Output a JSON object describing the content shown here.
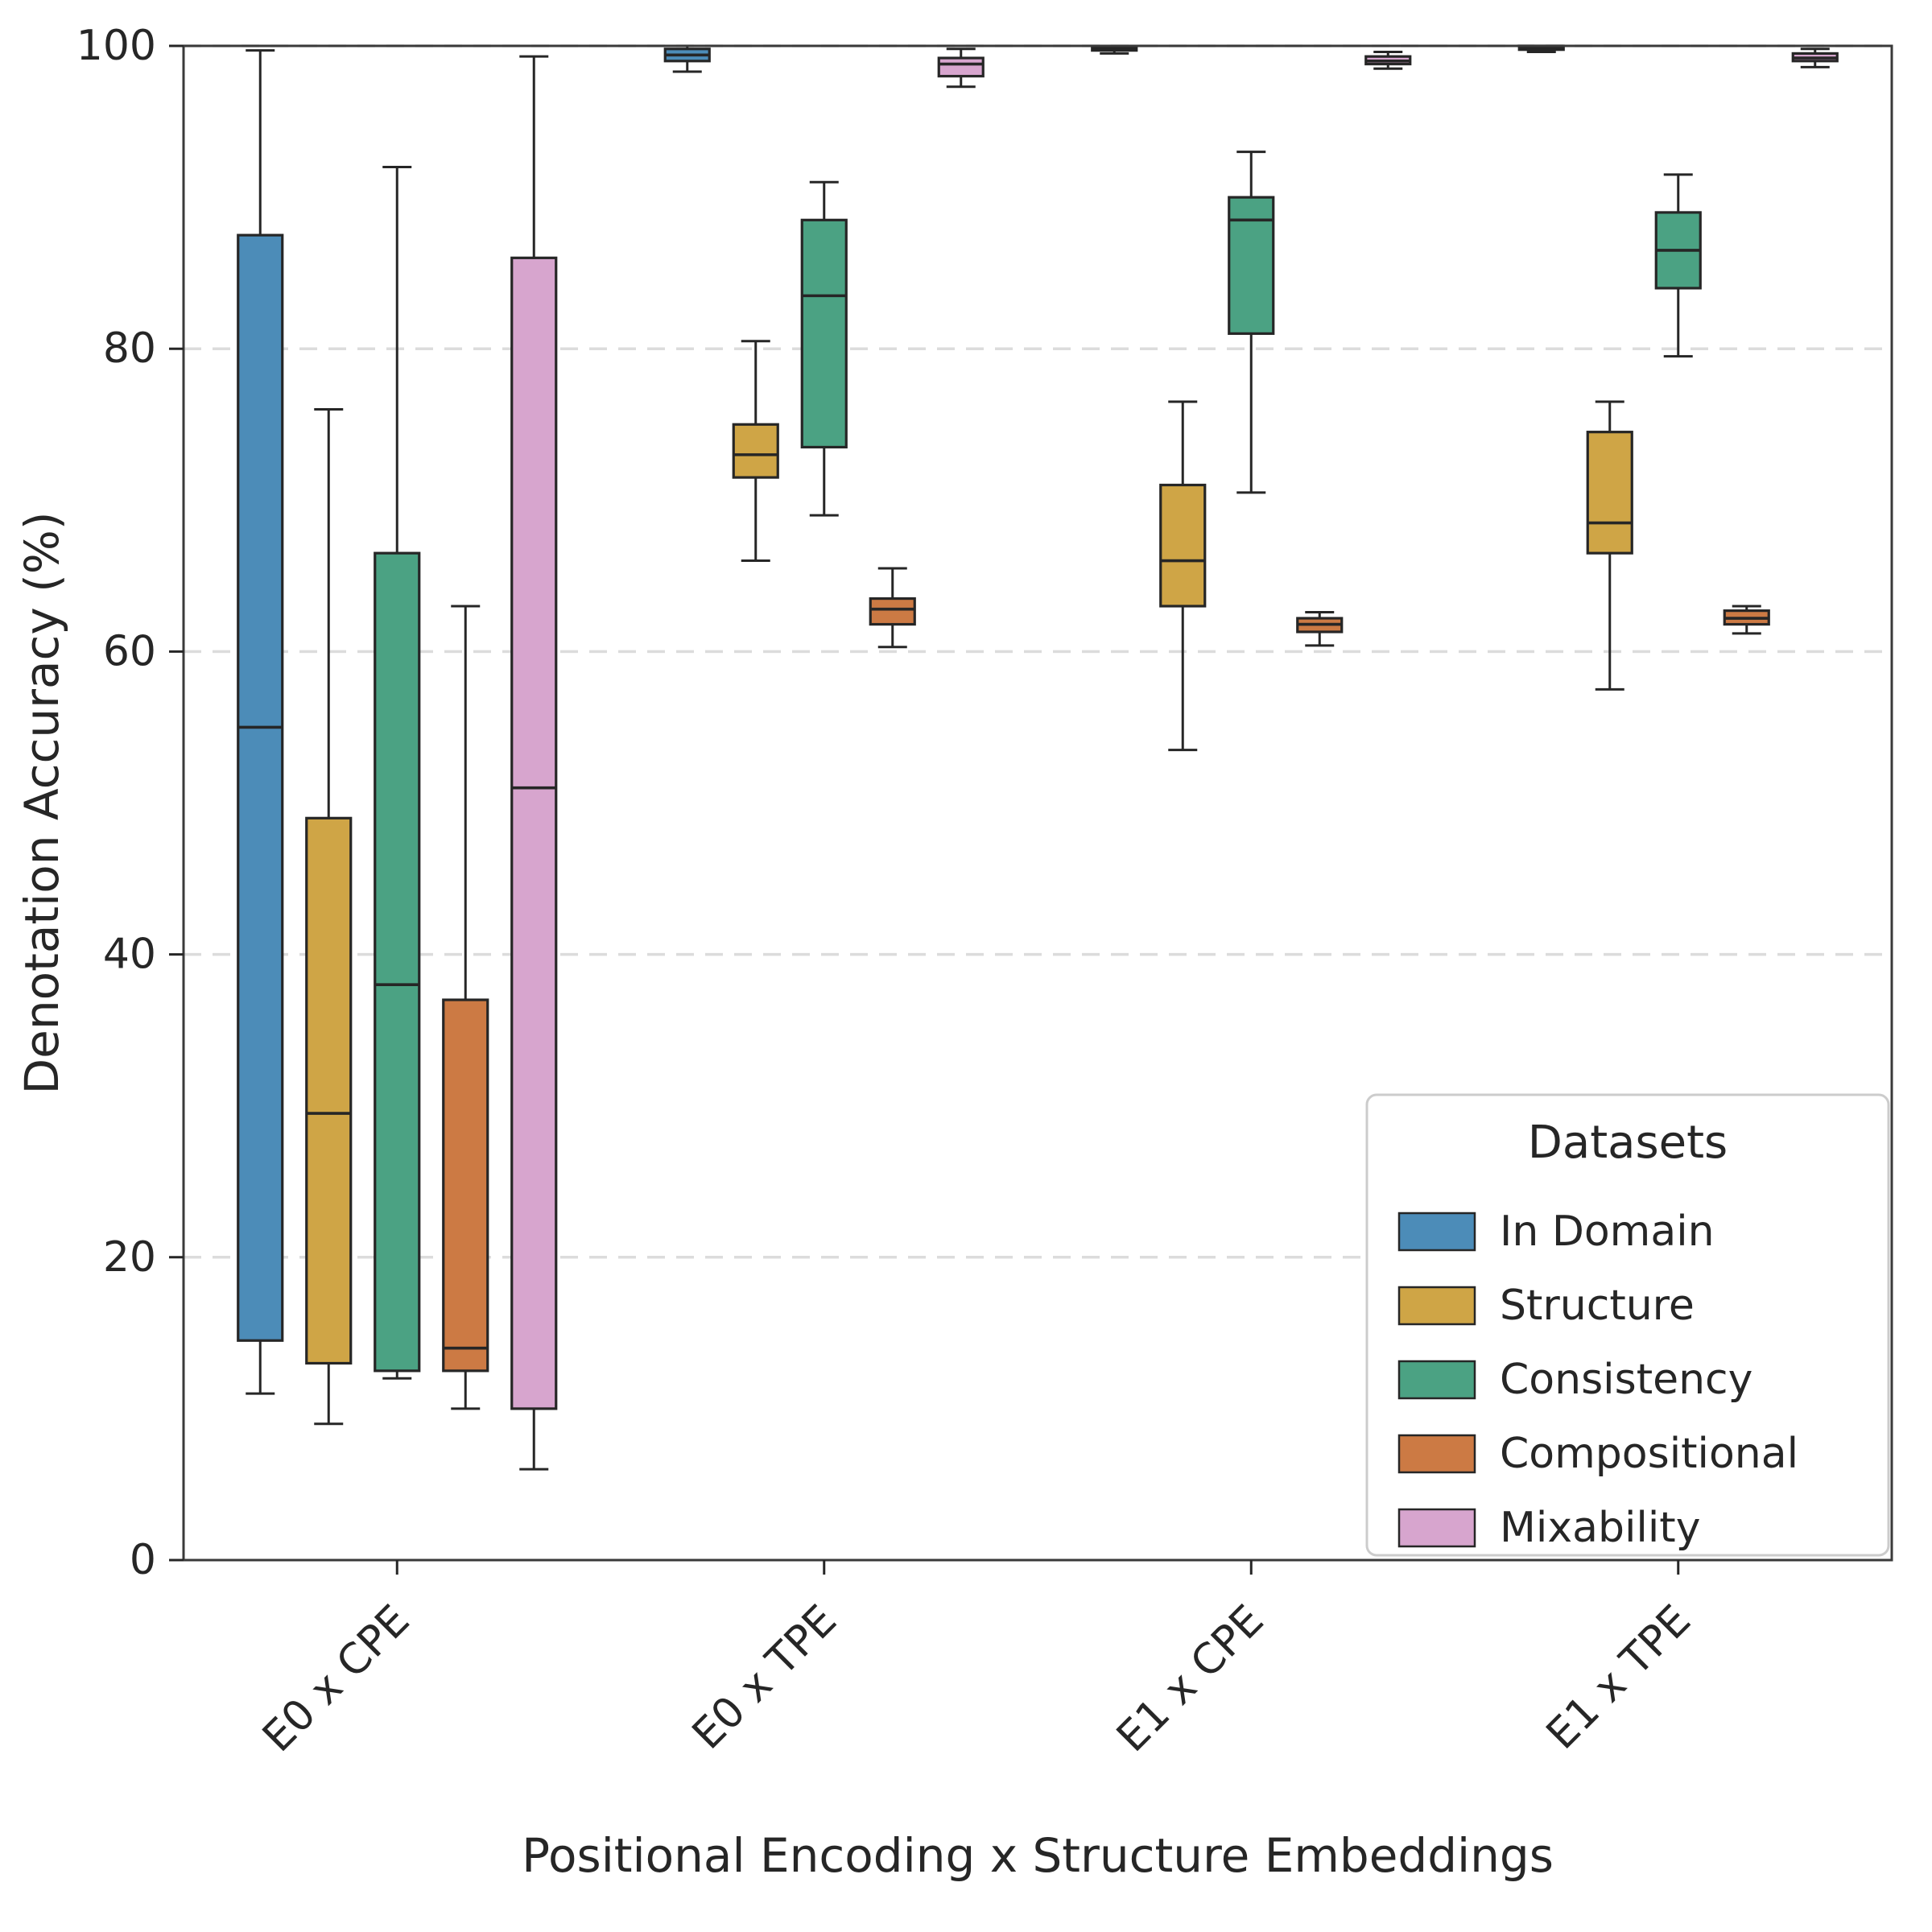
{
  "figure": {
    "background": "#ffffff"
  },
  "chart_data": {
    "type": "boxplot",
    "title": "",
    "xlabel": "Positional Encoding x Structure Embeddings",
    "ylabel": "Denotation Accuracy (%)",
    "ylim": [
      0,
      100
    ],
    "yticks": [
      0,
      20,
      40,
      60,
      80,
      100
    ],
    "categories": [
      "E0 x CPE",
      "E0 x TPE",
      "E1 x CPE",
      "E1 x TPE"
    ],
    "legend": {
      "title": "Datasets",
      "position": "lower right"
    },
    "grid": {
      "axis": "y",
      "style": "dashed",
      "color": "#dcdcdc"
    },
    "edge_color": "#262626",
    "series": [
      {
        "name": "In Domain",
        "color": "#4c8cb8",
        "boxes": [
          {
            "whislo": 11,
            "q1": 14.5,
            "med": 55,
            "q3": 87.5,
            "whishi": 99.7
          },
          {
            "whislo": 98.3,
            "q1": 99.0,
            "med": 99.4,
            "q3": 99.8,
            "whishi": 100
          },
          {
            "whislo": 99.5,
            "q1": 99.7,
            "med": 99.85,
            "q3": 99.95,
            "whishi": 100
          },
          {
            "whislo": 99.6,
            "q1": 99.75,
            "med": 99.9,
            "q3": 100,
            "whishi": 100
          }
        ]
      },
      {
        "name": "Structure",
        "color": "#cfa546",
        "boxes": [
          {
            "whislo": 9,
            "q1": 13,
            "med": 29.5,
            "q3": 49,
            "whishi": 76
          },
          {
            "whislo": 66,
            "q1": 71.5,
            "med": 73,
            "q3": 75,
            "whishi": 80.5
          },
          {
            "whislo": 53.5,
            "q1": 63,
            "med": 66,
            "q3": 71,
            "whishi": 76.5
          },
          {
            "whislo": 57.5,
            "q1": 66.5,
            "med": 68.5,
            "q3": 74.5,
            "whishi": 76.5
          }
        ]
      },
      {
        "name": "Consistency",
        "color": "#4ba283",
        "boxes": [
          {
            "whislo": 12,
            "q1": 12.5,
            "med": 38,
            "q3": 66.5,
            "whishi": 92
          },
          {
            "whislo": 69,
            "q1": 73.5,
            "med": 83.5,
            "q3": 88.5,
            "whishi": 91
          },
          {
            "whislo": 70.5,
            "q1": 81,
            "med": 88.5,
            "q3": 90,
            "whishi": 93
          },
          {
            "whislo": 79.5,
            "q1": 84,
            "med": 86.5,
            "q3": 89,
            "whishi": 91.5
          }
        ]
      },
      {
        "name": "Compositional",
        "color": "#cc7a44",
        "boxes": [
          {
            "whislo": 10,
            "q1": 12.5,
            "med": 14,
            "q3": 37,
            "whishi": 63
          },
          {
            "whislo": 60.3,
            "q1": 61.8,
            "med": 62.8,
            "q3": 63.5,
            "whishi": 65.5
          },
          {
            "whislo": 60.4,
            "q1": 61.3,
            "med": 61.8,
            "q3": 62.2,
            "whishi": 62.6
          },
          {
            "whislo": 61.2,
            "q1": 61.8,
            "med": 62.2,
            "q3": 62.7,
            "whishi": 63
          }
        ]
      },
      {
        "name": "Mixability",
        "color": "#d7a5ce",
        "boxes": [
          {
            "whislo": 6,
            "q1": 10,
            "med": 51,
            "q3": 86,
            "whishi": 99.3
          },
          {
            "whislo": 97.3,
            "q1": 98.0,
            "med": 98.8,
            "q3": 99.2,
            "whishi": 99.8
          },
          {
            "whislo": 98.5,
            "q1": 98.8,
            "med": 99.0,
            "q3": 99.3,
            "whishi": 99.6
          },
          {
            "whislo": 98.6,
            "q1": 99.0,
            "med": 99.2,
            "q3": 99.5,
            "whishi": 99.8
          }
        ]
      }
    ]
  }
}
